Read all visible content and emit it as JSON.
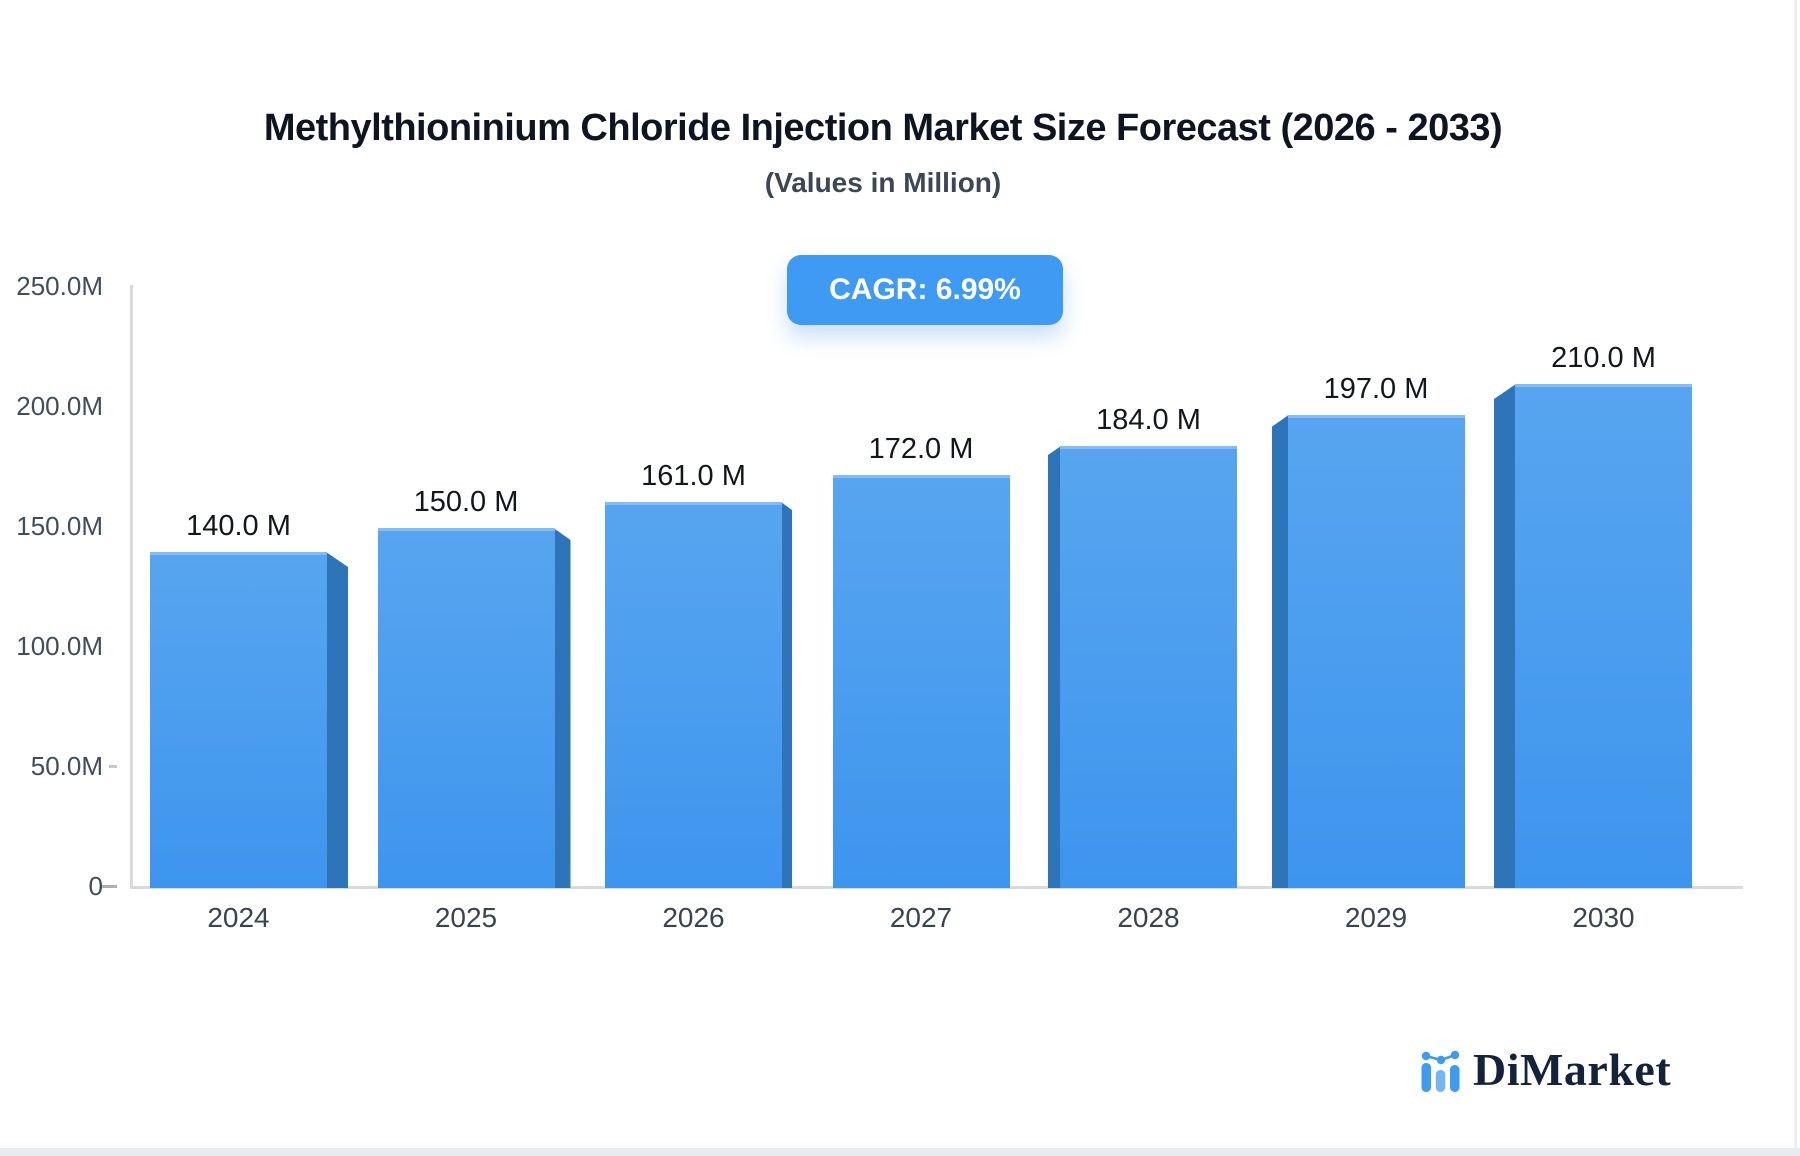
{
  "page": {
    "title": "Methylthioninium Chloride Injection Market Size Forecast (2026 - 2033)",
    "subtitle": "(Values in Million)"
  },
  "badge": {
    "label": "CAGR: 6.99%"
  },
  "brand": {
    "name": "DiMarket",
    "icon": "mini-bar-chart-logo-icon"
  },
  "colors": {
    "accent": "#3e9af2",
    "bar_face_top": "#57a5f0",
    "bar_face_bottom": "#3e95ee",
    "bar_side": "#2e74b9",
    "axis": "#d9dadd",
    "logo_navy": "#15223b",
    "logo_blue": "#3f9bf0"
  },
  "chart_data": {
    "type": "bar",
    "title": "Methylthioninium Chloride Injection Market Size Forecast (2026 - 2033)",
    "subtitle": "(Values in Million)",
    "unit": "Million",
    "categories": [
      "2024",
      "2025",
      "2026",
      "2027",
      "2028",
      "2029",
      "2030"
    ],
    "values": [
      140,
      150,
      161,
      172,
      184,
      197,
      210
    ],
    "value_labels": [
      "140.0 M",
      "150.0 M",
      "161.0 M",
      "172.0 M",
      "184.0 M",
      "197.0 M",
      "210.0 M"
    ],
    "y_axis_tick_labels": [
      "250.0M",
      "200.0M",
      "150.0M",
      "100.0M",
      "50.0M",
      "0"
    ],
    "ylim": [
      0,
      250
    ],
    "grid": false,
    "legend": "none",
    "annotation": "CAGR: 6.99%",
    "style": "3d-perspective-bars"
  }
}
